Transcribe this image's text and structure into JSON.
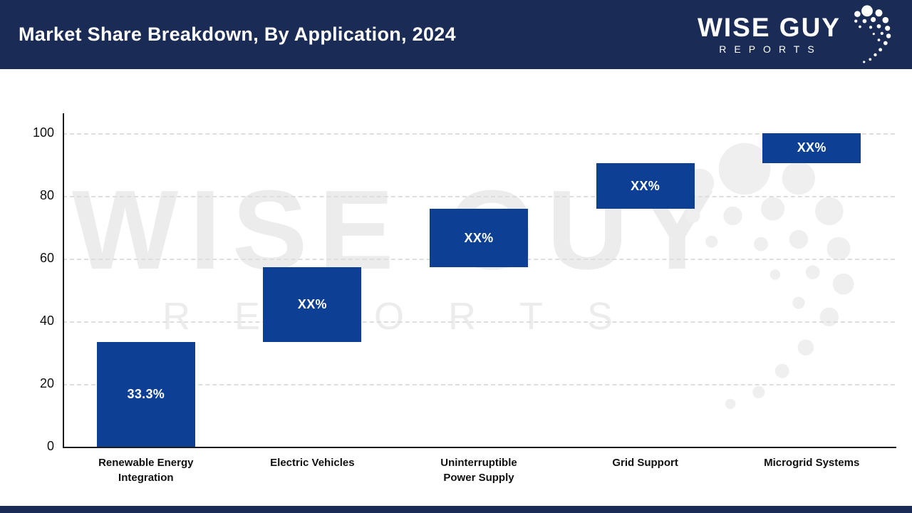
{
  "header": {
    "title": "Market Share Breakdown, By Application, 2024",
    "logo": {
      "line1": "WISE GUY",
      "line2": "REPORTS"
    }
  },
  "watermark": {
    "line1": "WISE GUY",
    "line2": "REPORTS"
  },
  "chart_data": {
    "type": "bar",
    "subtype": "waterfall",
    "title": "Market Share Breakdown, By Application, 2024",
    "categories": [
      "Renewable Energy Integration",
      "Electric Vehicles",
      "Uninterruptible Power Supply",
      "Grid Support",
      "Microgrid Systems"
    ],
    "bars": [
      {
        "category": "Renewable Energy Integration",
        "category_lines": [
          "Renewable Energy",
          "Integration"
        ],
        "start": 0,
        "end": 33.3,
        "label": "33.3%"
      },
      {
        "category": "Electric Vehicles",
        "category_lines": [
          "Electric Vehicles"
        ],
        "start": 33.3,
        "end": 57.3,
        "label": "XX%"
      },
      {
        "category": "Uninterruptible Power Supply",
        "category_lines": [
          "Uninterruptible",
          "Power Supply"
        ],
        "start": 57.3,
        "end": 75.8,
        "label": "XX%"
      },
      {
        "category": "Grid Support",
        "category_lines": [
          "Grid Support"
        ],
        "start": 75.8,
        "end": 90.5,
        "label": "XX%"
      },
      {
        "category": "Microgrid Systems",
        "category_lines": [
          "Microgrid Systems"
        ],
        "start": 90.5,
        "end": 100,
        "label": "XX%"
      }
    ],
    "yticks": [
      0,
      20,
      40,
      60,
      80,
      100
    ],
    "ylim": [
      0,
      100
    ],
    "xlabel": "",
    "ylabel": "",
    "grid": "horizontal-dashed",
    "legend": "none",
    "bar_color": "#0d3f94",
    "bar_label_color": "#ffffff"
  }
}
